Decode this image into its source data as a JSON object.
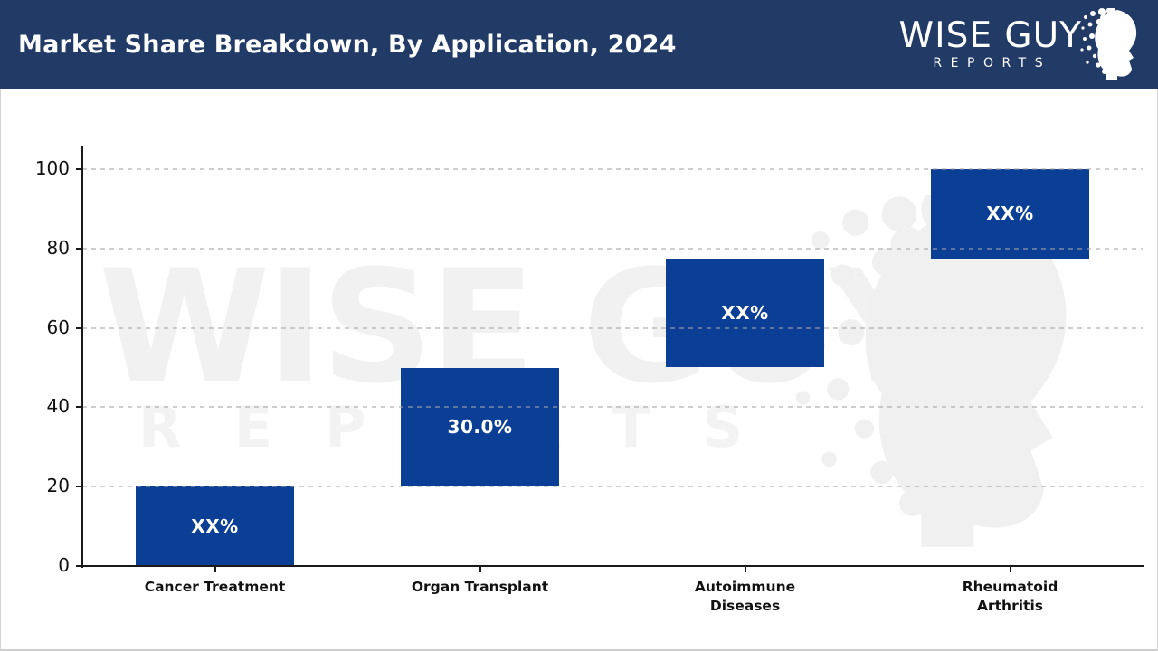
{
  "header": {
    "title": "Market Share Breakdown, By Application, 2024",
    "logo": {
      "primary": "WISE GUY",
      "secondary": "REPORTS"
    }
  },
  "watermark": {
    "primary": "WISE GUY",
    "secondary": "REPORTS"
  },
  "colors": {
    "header_bg": "#213a66",
    "bar": "#0b3e95",
    "bar_label": "#ffffff",
    "axis": "#1a1a1a",
    "grid": "#bbbbbb",
    "watermark": "#f1f1f1"
  },
  "chart_data": {
    "type": "bar",
    "variant": "floating-waterfall",
    "title": "Market Share Breakdown, By Application, 2024",
    "categories": [
      "Cancer Treatment",
      "Organ Transplant",
      "Autoimmune Diseases",
      "Rheumatoid Arthritis"
    ],
    "segments": [
      {
        "category": "Cancer Treatment",
        "start": 0,
        "end": 20,
        "label": "XX%"
      },
      {
        "category": "Organ Transplant",
        "start": 20,
        "end": 50,
        "label": "30.0%"
      },
      {
        "category": "Autoimmune Diseases",
        "start": 50,
        "end": 77.5,
        "label": "XX%"
      },
      {
        "category": "Rheumatoid Arthritis",
        "start": 77.5,
        "end": 100,
        "label": "XX%"
      }
    ],
    "bar_labels": [
      "XX%",
      "30.0%",
      "XX%",
      "XX%"
    ],
    "ylim": [
      0,
      100
    ],
    "yticks": [
      0,
      20,
      40,
      60,
      80,
      100
    ],
    "xlabel": "",
    "ylabel": "",
    "grid": "horizontal-dashed",
    "legend": false
  }
}
